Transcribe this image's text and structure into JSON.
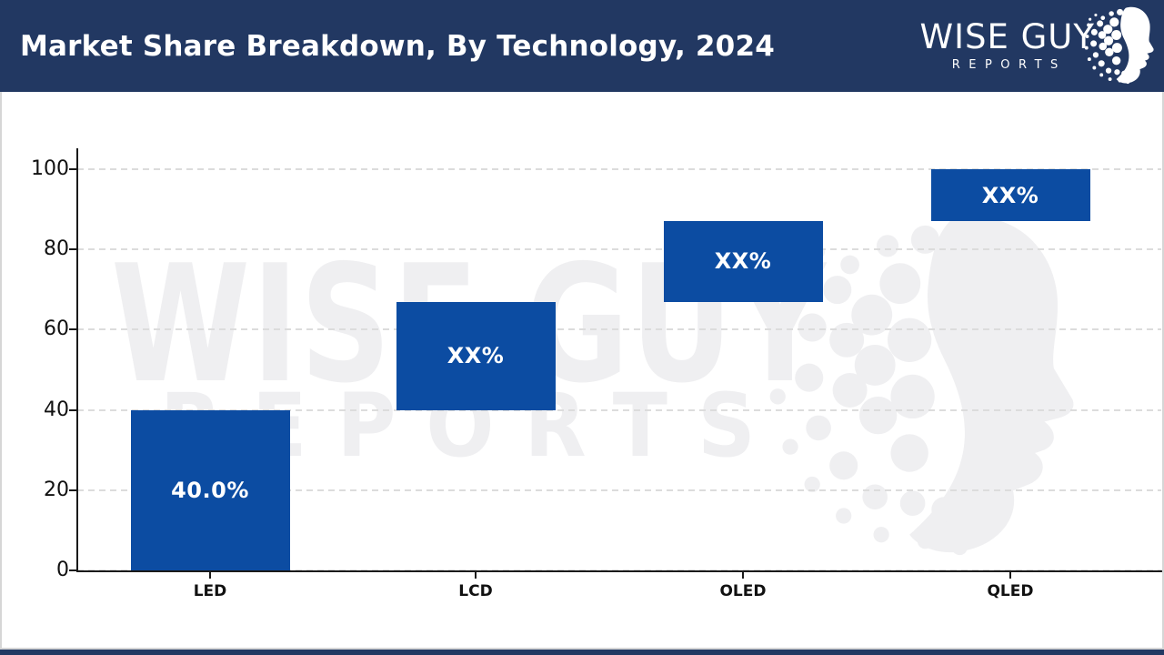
{
  "header": {
    "title": "Market Share Breakdown, By Technology, 2024",
    "logo": {
      "name": "WISE GUY",
      "subtitle": "REPORTS"
    }
  },
  "watermark": {
    "line1": "WISE GUY",
    "line2": "REPORTS"
  },
  "colors": {
    "header_bg": "#223862",
    "bar": "#0c4ca2",
    "grid": "#dcdcdc",
    "axis": "#1a1a1a",
    "border": "#d6d6d6",
    "watermark": "#efeff1",
    "bar_label": "#ffffff"
  },
  "chart_data": {
    "type": "bar",
    "variant": "waterfall-stacked",
    "title": "Market Share Breakdown, By Technology, 2024",
    "categories": [
      "LED",
      "LCD",
      "OLED",
      "QLED"
    ],
    "segments": [
      {
        "category": "LED",
        "start": 0,
        "end": 40,
        "value": 40,
        "label": "40.0%"
      },
      {
        "category": "LCD",
        "start": 40,
        "end": 67,
        "value": 27,
        "label": "XX%"
      },
      {
        "category": "OLED",
        "start": 67,
        "end": 87,
        "value": 20,
        "label": "XX%"
      },
      {
        "category": "QLED",
        "start": 87,
        "end": 100,
        "value": 13,
        "label": "XX%"
      }
    ],
    "xlabel": "",
    "ylabel": "",
    "ylim": [
      0,
      100
    ],
    "yticks": [
      0,
      20,
      40,
      60,
      80,
      100
    ],
    "grid": "horizontal-dashed",
    "legend": "none"
  }
}
